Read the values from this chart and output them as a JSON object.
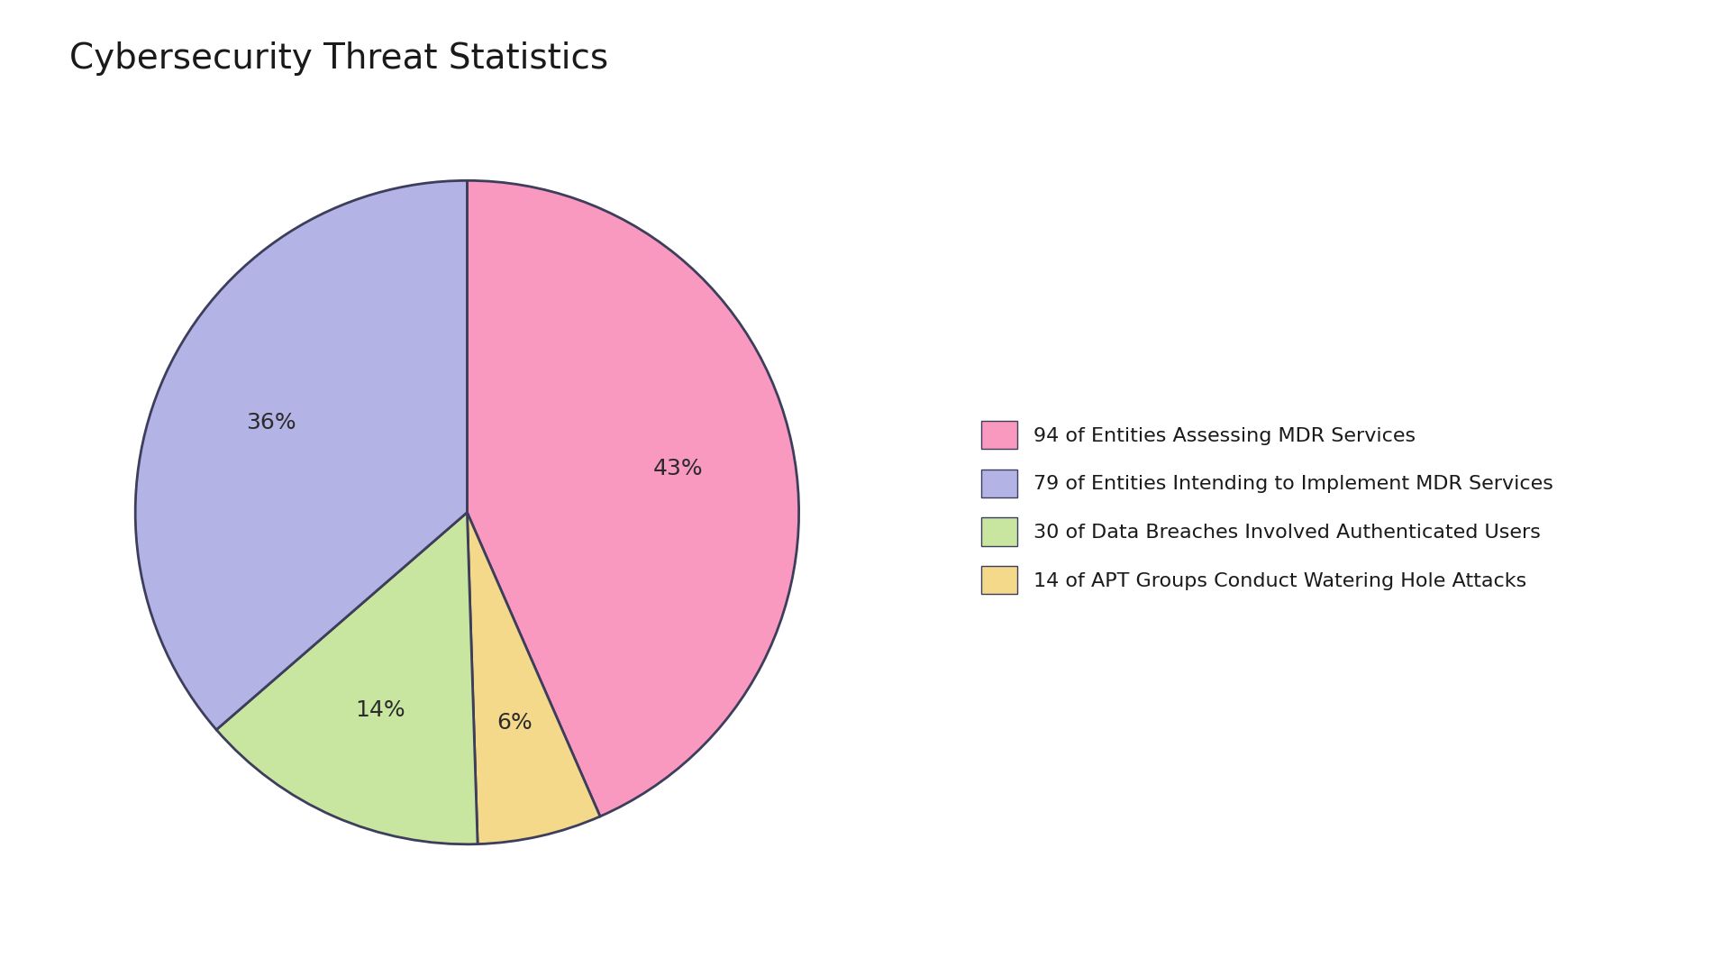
{
  "title": "Cybersecurity Threat Statistics",
  "slices": [
    {
      "label": "94 of Entities Assessing MDR Services",
      "value": 43,
      "color": "#F999C0"
    },
    {
      "label": "79 of Entities Intending to Implement MDR Services",
      "value": 36,
      "color": "#B3B3E6"
    },
    {
      "label": "30 of Data Breaches Involved Authenticated Users",
      "value": 14,
      "color": "#C8E6A0"
    },
    {
      "label": "14 of APT Groups Conduct Watering Hole Attacks",
      "value": 6,
      "color": "#F5D98B"
    }
  ],
  "background_color": "#FFFFFF",
  "title_fontsize": 28,
  "autopct_fontsize": 18,
  "legend_fontsize": 16,
  "edge_color": "#3D3D5C",
  "edge_linewidth": 2.0,
  "startangle": 90,
  "counterclock": false
}
